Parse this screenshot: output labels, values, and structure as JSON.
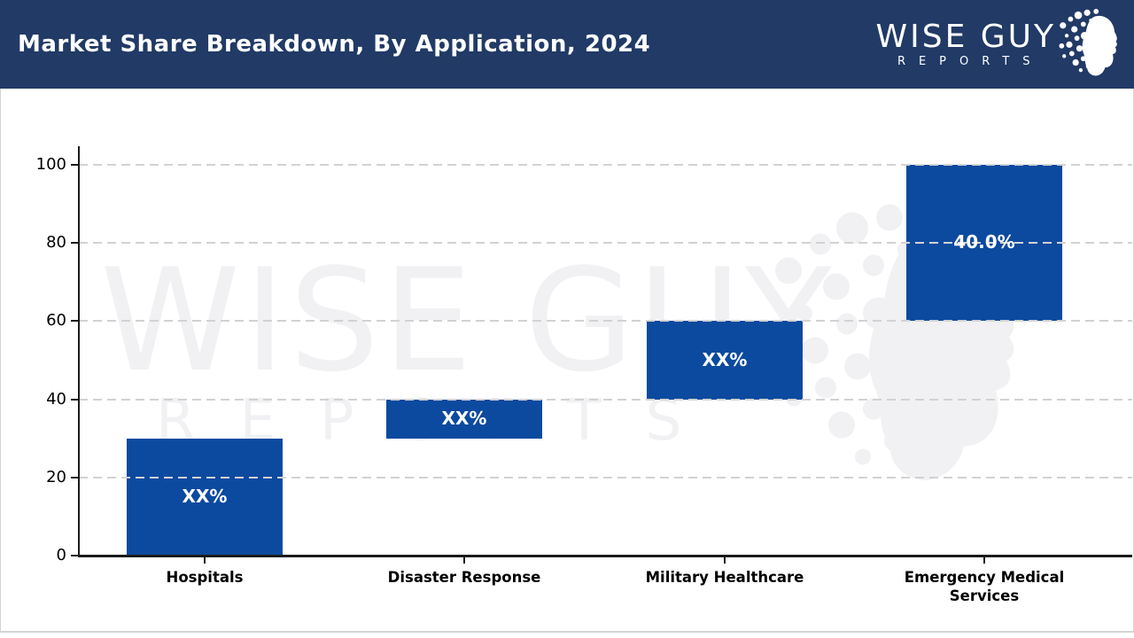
{
  "header": {
    "title": "Market Share Breakdown, By Application, 2024",
    "bg_color": "#213a66",
    "logo": {
      "line1": "WISE GUY",
      "line2": "REPORTS"
    }
  },
  "watermark": {
    "line1": "WISE GUY",
    "line2": "REPORTS",
    "color": "#f1f1f4"
  },
  "chart_data": {
    "type": "bar",
    "variant": "waterfall",
    "title": "Market Share Breakdown, By Application, 2024",
    "categories": [
      "Hospitals",
      "Disaster Response",
      "Military Healthcare",
      "Emergency Medical Services"
    ],
    "bars": [
      {
        "category": "Hospitals",
        "start": 0,
        "end": 30,
        "value": 30,
        "label": "XX%"
      },
      {
        "category": "Disaster Response",
        "start": 30,
        "end": 40,
        "value": 10,
        "label": "XX%"
      },
      {
        "category": "Military Healthcare",
        "start": 40,
        "end": 60,
        "value": 20,
        "label": "XX%"
      },
      {
        "category": "Emergency Medical Services",
        "start": 60,
        "end": 100,
        "value": 40,
        "label": "40.0%"
      }
    ],
    "yticks": [
      0,
      20,
      40,
      60,
      80,
      100
    ],
    "ylim": [
      0,
      105
    ],
    "xlabel": "",
    "ylabel": "",
    "bar_color": "#0c4a9f",
    "grid": {
      "axis": "y",
      "style": "dashed",
      "color": "#d2d2d2",
      "on_top_of_bars": true
    },
    "legend": null,
    "unit": "%"
  }
}
